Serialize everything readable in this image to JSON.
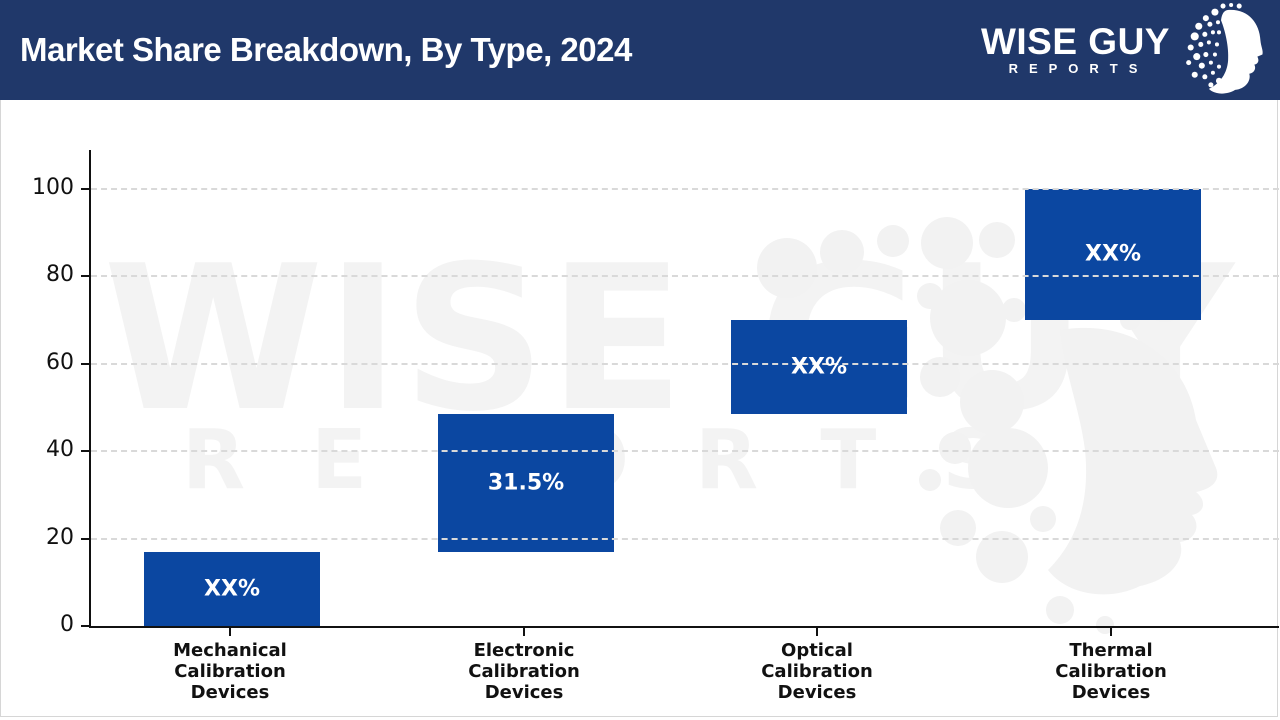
{
  "header": {
    "title": "Market Share Breakdown, By Type, 2024",
    "logo": {
      "name_line": "WISE GUY",
      "sub_line": "REPORTS"
    }
  },
  "watermark": {
    "name_line": "WISE GUY",
    "sub_line": "REPORTS"
  },
  "chart_data": {
    "type": "bar",
    "subtype": "waterfall",
    "title": "Market Share Breakdown, By Type, 2024",
    "categories": [
      "Mechanical Calibration Devices",
      "Electronic Calibration Devices",
      "Optical Calibration Devices",
      "Thermal Calibration Devices"
    ],
    "bars": [
      {
        "category": "Mechanical Calibration Devices",
        "start": 0,
        "end": 17,
        "label": "XX%"
      },
      {
        "category": "Electronic Calibration Devices",
        "start": 17,
        "end": 48.5,
        "label": "31.5%"
      },
      {
        "category": "Optical Calibration Devices",
        "start": 48.5,
        "end": 70,
        "label": "XX%"
      },
      {
        "category": "Thermal Calibration Devices",
        "start": 70,
        "end": 100,
        "label": "XX%"
      }
    ],
    "yticks": [
      0,
      20,
      40,
      60,
      80,
      100
    ],
    "ylim": [
      0,
      108
    ],
    "xlabel": "",
    "ylabel": "",
    "grid": {
      "axis": "y",
      "style": "dashed",
      "drawn_over_bars": true
    },
    "legend": null,
    "colors": {
      "bar": "#0b47a1",
      "bar_label_text": "#ffffff",
      "header_bg": "#20386a",
      "grid_line": "#d9d9d9",
      "axis_line": "#111111",
      "watermark": "#f3f3f3"
    }
  }
}
